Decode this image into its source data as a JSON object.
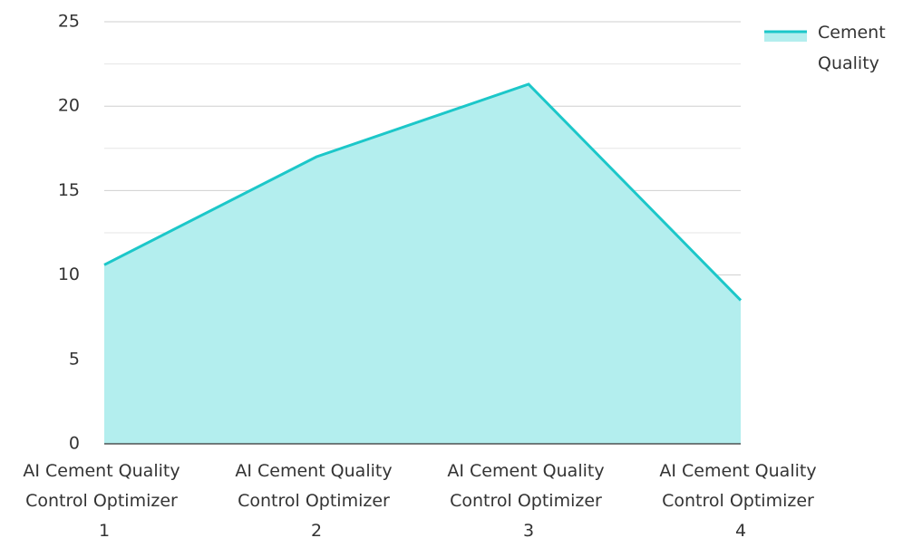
{
  "chart_data": {
    "type": "area",
    "categories": [
      "AI Cement Quality Control Optimizer 1",
      "AI Cement Quality Control Optimizer 2",
      "AI Cement Quality Control Optimizer 3",
      "AI Cement Quality Control Optimizer 4"
    ],
    "series": [
      {
        "name": "Cement Quality",
        "color": "#1cc7c9",
        "fill": "#b3eeee",
        "values": [
          10.6,
          17.0,
          21.3,
          8.5
        ]
      }
    ],
    "ylim": [
      0,
      25
    ],
    "yticks": [
      0,
      5,
      10,
      15,
      20,
      25
    ],
    "minor_yticks": [
      2.5,
      7.5,
      12.5,
      17.5,
      22.5
    ],
    "grid": true,
    "legend": "top-right"
  }
}
